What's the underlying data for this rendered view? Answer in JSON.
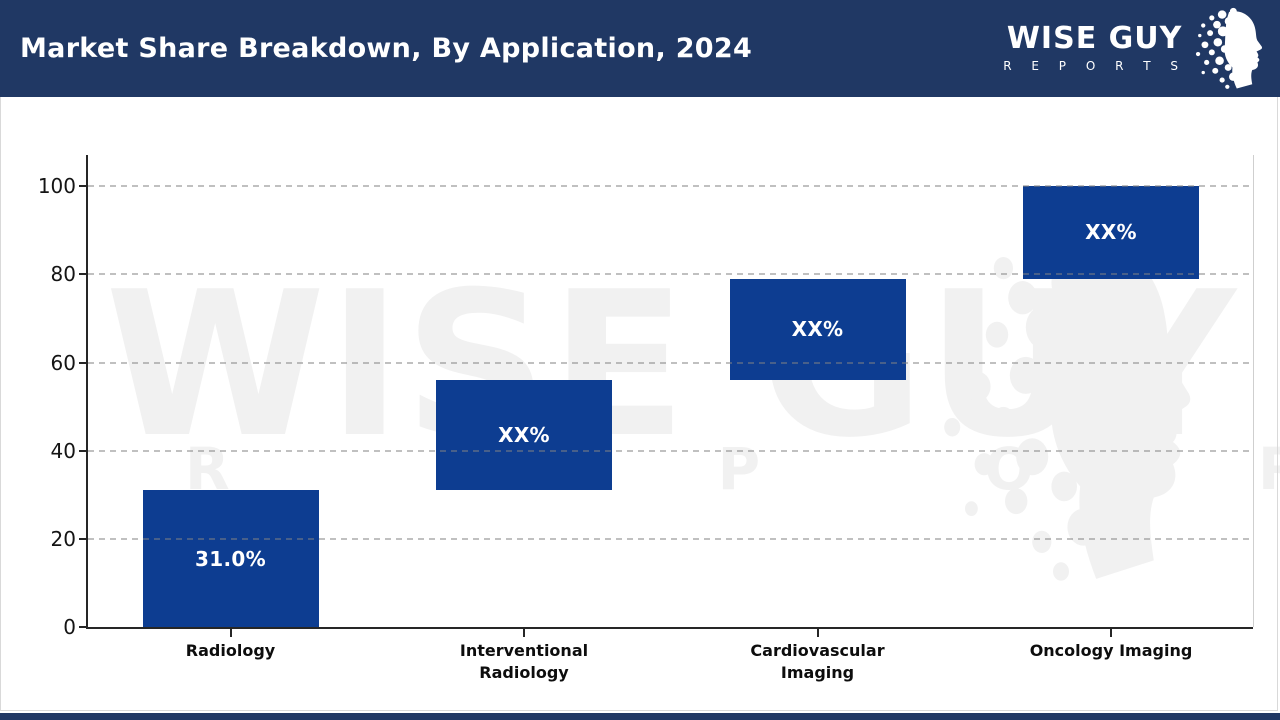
{
  "header": {
    "title": "Market Share Breakdown, By Application, 2024",
    "logo": {
      "wordmark": "WISE GUY",
      "subtext": "R E P O R T S"
    }
  },
  "watermark": {
    "wordmark": "WISE GUY",
    "subtext": "R E P O R T S"
  },
  "chart_data": {
    "type": "bar",
    "variant": "floating-segment-waterfall",
    "title": "Market Share Breakdown, By Application, 2024",
    "categories": [
      "Radiology",
      "Interventional Radiology",
      "Cardiovascular Imaging",
      "Oncology Imaging"
    ],
    "categories_display": [
      "Radiology",
      "Interventional\nRadiology",
      "Cardiovascular\nImaging",
      "Oncology Imaging"
    ],
    "series": [
      {
        "name": "Market share (%)",
        "segments": [
          {
            "category": "Radiology",
            "from": 0,
            "to": 31,
            "label": "31.0%"
          },
          {
            "category": "Interventional Radiology",
            "from": 31,
            "to": 56,
            "label": "XX%"
          },
          {
            "category": "Cardiovascular Imaging",
            "from": 56,
            "to": 79,
            "label": "XX%"
          },
          {
            "category": "Oncology Imaging",
            "from": 79,
            "to": 100,
            "label": "XX%"
          }
        ]
      }
    ],
    "ylim": [
      0,
      100
    ],
    "yticks": [
      0,
      20,
      40,
      60,
      80,
      100
    ],
    "xlabel": "",
    "ylabel": "",
    "grid": {
      "horizontal": true,
      "style": "dashed",
      "above_bars": true
    },
    "legend": null
  },
  "colors": {
    "header_bg": "#203864",
    "footer_bg": "#203864",
    "bar": "#0d3d91",
    "bar_label": "#ffffff",
    "axis": "#262626",
    "tick_label": "#141414",
    "watermark": "#f1f1f1"
  }
}
